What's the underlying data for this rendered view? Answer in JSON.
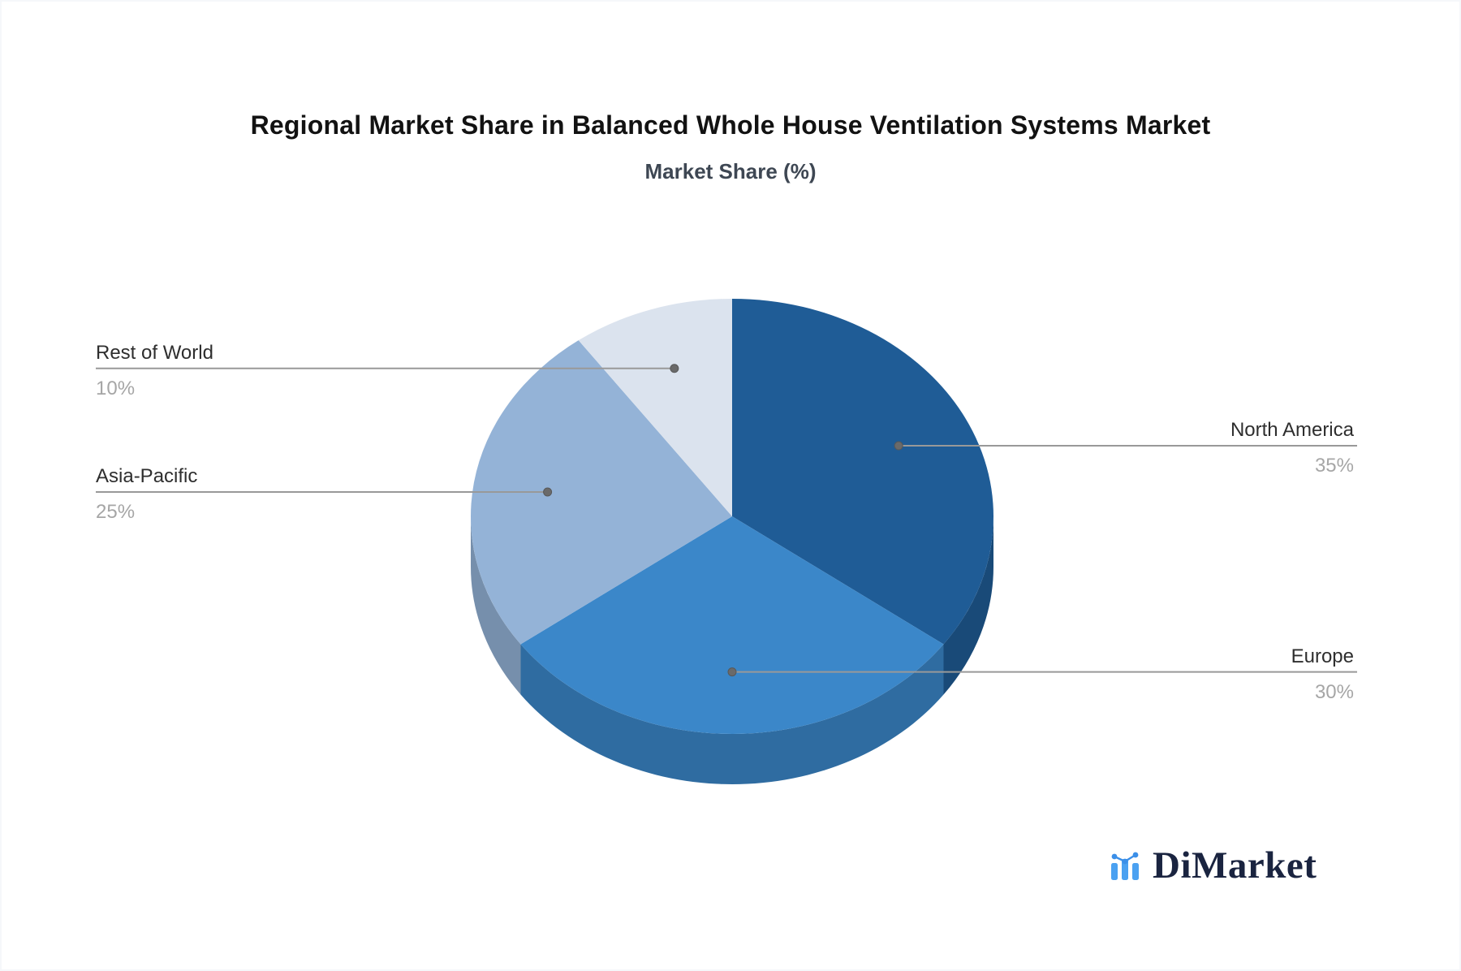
{
  "chart_data": {
    "type": "pie",
    "style": "3d",
    "title": "Regional Market Share in Balanced Whole House Ventilation Systems Market",
    "subtitle": "Market Share (%)",
    "unit": "%",
    "start_angle_deg": 0,
    "direction": "clockwise",
    "legend_position": "none",
    "label_style": "leader-lines",
    "slices": [
      {
        "label": "North America",
        "value": 35,
        "pct_label": "35%",
        "color": "#1f5c96"
      },
      {
        "label": "Europe",
        "value": 30,
        "pct_label": "30%",
        "color": "#3b87c9"
      },
      {
        "label": "Asia-Pacific",
        "value": 25,
        "pct_label": "25%",
        "color": "#94b3d7"
      },
      {
        "label": "Rest of World",
        "value": 10,
        "pct_label": "10%",
        "color": "#dbe3ee"
      }
    ]
  },
  "branding": {
    "logo_text": "DiMarket",
    "logo_icon": "bar-chart-sparkline-icon",
    "logo_text_color": "#1a2440",
    "logo_bar_color": "#4ba1f1",
    "logo_dot_color": "#3b8fe8"
  },
  "colors": {
    "title": "#121212",
    "subtitle": "#3e4753",
    "leader_line": "#999999",
    "leader_dot": "#6a6a6a",
    "label_text": "#2e2e2e",
    "pct_text": "#a6a6a6",
    "background": "#ffffff"
  }
}
